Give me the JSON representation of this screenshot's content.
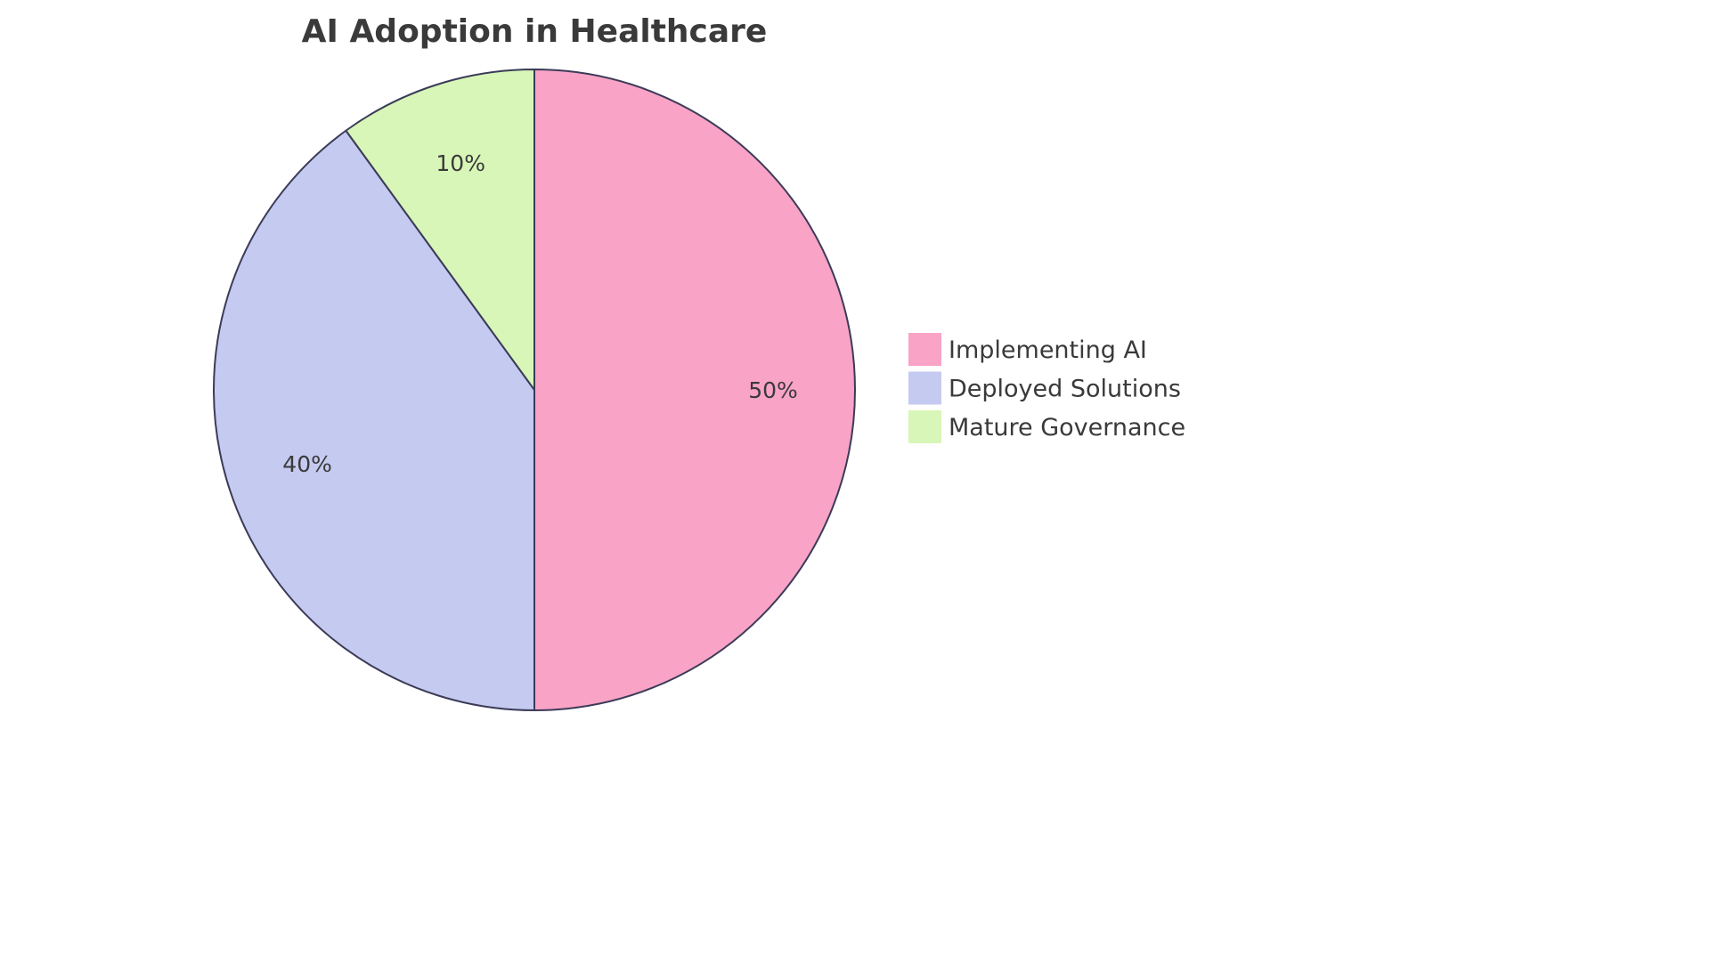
{
  "chart_data": {
    "type": "pie",
    "title": "AI Adoption in Healthcare",
    "categories": [
      "Implementing AI",
      "Deployed Solutions",
      "Mature Governance"
    ],
    "values": [
      50,
      40,
      10
    ],
    "slice_labels": [
      "50%",
      "40%",
      "10%"
    ],
    "colors": [
      "#F9A3C7",
      "#C5CAF0",
      "#D8F6B7"
    ],
    "border_color": "#3B3B58",
    "label_color": "#3A3A3A",
    "background": "#FFFFFF",
    "legend_position": "right",
    "start_angle_deg": 0,
    "direction": "clockwise"
  }
}
